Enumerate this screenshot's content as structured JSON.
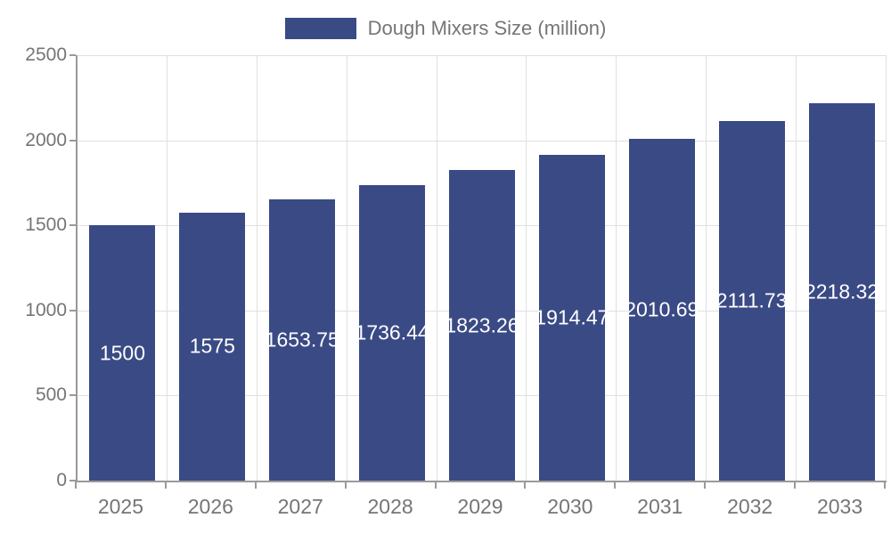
{
  "legend": {
    "label": "Dough Mixers Size (million)"
  },
  "chart_data": {
    "type": "bar",
    "title": "Dough Mixers Size (million)",
    "series_name": "Dough Mixers Size (million)",
    "categories": [
      "2025",
      "2026",
      "2027",
      "2028",
      "2029",
      "2030",
      "2031",
      "2032",
      "2033"
    ],
    "values": [
      1500,
      1575,
      1653.75,
      1736.44,
      1823.26,
      1914.47,
      2010.69,
      2111.73,
      2218.32
    ],
    "value_labels": [
      "1500",
      "1575",
      "1653.75",
      "1736.44",
      "1823.26",
      "1914.47",
      "2010.69",
      "2111.73",
      "2218.32"
    ],
    "xlabel": "",
    "ylabel": "",
    "ylim": [
      0,
      2500
    ],
    "yticks": [
      0,
      500,
      1000,
      1500,
      2000,
      2500
    ],
    "grid": true,
    "legend_position": "top-center",
    "colors": {
      "bar": "#3A4A85",
      "bar_label_text": "#ffffff",
      "axis_text": "#757575",
      "grid_line": "#e0e0e0",
      "axis_line": "#9a9a9a"
    }
  }
}
